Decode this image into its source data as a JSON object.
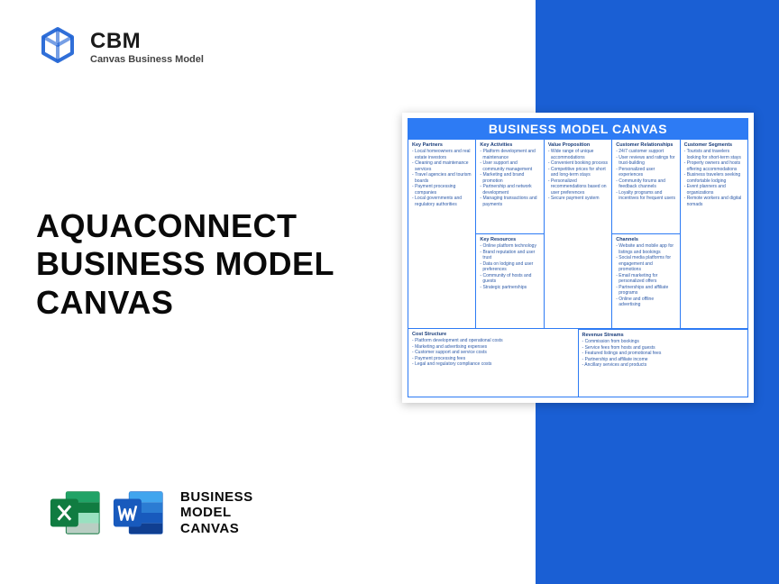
{
  "logo": {
    "title": "CBM",
    "subtitle": "Canvas Business Model",
    "icon_color": "#1a5fd4"
  },
  "main_title": {
    "l1": "AQUACONNECT",
    "l2": "BUSINESS MODEL",
    "l3": "CANVAS"
  },
  "bottom": {
    "l1": "BUSINESS",
    "l2": "MODEL",
    "l3": "CANVAS",
    "excel_color": "#107c41",
    "word_color": "#185abd"
  },
  "triangle_color": "#1a5fd4",
  "canvas": {
    "header": "BUSINESS MODEL CANVAS",
    "header_bg": "#2d7bf4",
    "border_color": "#2d7bf4",
    "text_color": "#2d5aa8",
    "label_color": "#1a3d7a",
    "key_partners": {
      "label": "Key Partners",
      "items": [
        "Local homeowners and real estate investors",
        "Cleaning and maintenance services",
        "Travel agencies and tourism boards",
        "Payment processing companies",
        "Local governments and regulatory authorities"
      ]
    },
    "key_activities": {
      "label": "Key Activities",
      "items": [
        "Platform development and maintenance",
        "User support and community management",
        "Marketing and brand promotion",
        "Partnership and network development",
        "Managing transactions and payments"
      ]
    },
    "key_resources": {
      "label": "Key Resources",
      "items": [
        "Online platform technology",
        "Brand reputation and user trust",
        "Data on lodging and user preferences",
        "Community of hosts and guests",
        "Strategic partnerships"
      ]
    },
    "value_proposition": {
      "label": "Value Proposition",
      "items": [
        "Wide range of unique accommodations",
        "Convenient booking process",
        "Competitive prices for short and long-term stays",
        "Personalized recommendations based on user preferences",
        "Secure payment system"
      ]
    },
    "customer_relationships": {
      "label": "Customer Relationships",
      "items": [
        "24/7 customer support",
        "User reviews and ratings for trust-building",
        "Personalized user experiences",
        "Community forums and feedback channels",
        "Loyalty programs and incentives for frequent users"
      ]
    },
    "channels": {
      "label": "Channels",
      "items": [
        "Website and mobile app for listings and bookings",
        "Social media platforms for engagement and promotions",
        "Email marketing for personalized offers",
        "Partnerships and affiliate programs",
        "Online and offline advertising"
      ]
    },
    "customer_segments": {
      "label": "Customer Segments",
      "items": [
        "Tourists and travelers looking for short-term stays",
        "Property owners and hosts offering accommodations",
        "Business travelers seeking comfortable lodging",
        "Event planners and organizations",
        "Remote workers and digital nomads"
      ]
    },
    "cost_structure": {
      "label": "Cost Structure",
      "items": [
        "Platform development and operational costs",
        "Marketing and advertising expenses",
        "Customer support and service costs",
        "Payment processing fees",
        "Legal and regulatory compliance costs"
      ]
    },
    "revenue_streams": {
      "label": "Revenue Streams",
      "items": [
        "Commission from bookings",
        "Service fees from hosts and guests",
        "Featured listings and promotional fees",
        "Partnership and affiliate income",
        "Ancillary services and products"
      ]
    }
  }
}
